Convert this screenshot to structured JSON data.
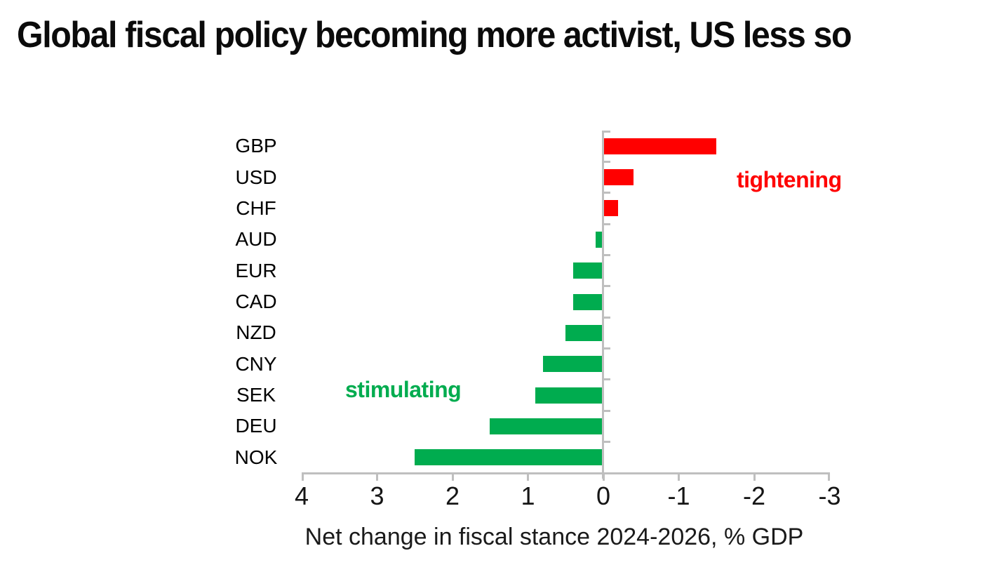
{
  "title": "Global fiscal policy becoming more activist, US less so",
  "chart_data": {
    "type": "bar",
    "orientation": "horizontal",
    "title": "Global fiscal policy becoming more activist, US less so",
    "categories": [
      "GBP",
      "USD",
      "CHF",
      "AUD",
      "EUR",
      "CAD",
      "NZD",
      "CNY",
      "SEK",
      "DEU",
      "NOK"
    ],
    "values": [
      -1.5,
      -0.4,
      -0.2,
      0.1,
      0.4,
      0.4,
      0.5,
      0.8,
      0.9,
      1.5,
      2.5
    ],
    "value_sign_convention": "positive = stimulating (bar extends left), negative = tightening (bar extends right)",
    "xlabel": "Net change in fiscal stance 2024-2026, % GDP",
    "x_ticks": [
      "4",
      "3",
      "2",
      "1",
      "0",
      "-1",
      "-2",
      "-3"
    ],
    "xlim": [
      4,
      -3
    ],
    "x_axis_reversed": true,
    "grid": false,
    "legend": "none",
    "colors": {
      "positive_stimulating": "#00AC4F",
      "negative_tightening": "#FF0000",
      "axis": "#BFBFBF",
      "title_text": "#0b0b0b"
    },
    "annotations": [
      {
        "text": "tightening",
        "color": "#FF0000",
        "location": "upper right, beside USD bar"
      },
      {
        "text": "stimulating",
        "color": "#00AC4F",
        "location": "lower left, beside SEK row"
      }
    ]
  }
}
